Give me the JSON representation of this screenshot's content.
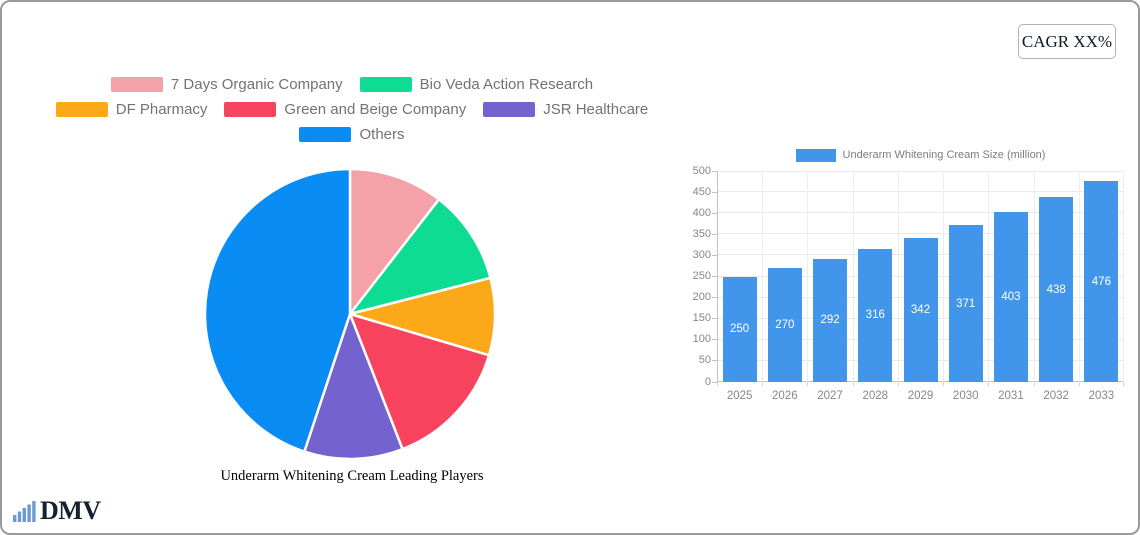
{
  "badge": {
    "label": "CAGR XX%"
  },
  "logo": {
    "text": "DMV",
    "icon": "growth-bars-icon",
    "icon_color": "#6c9ad3",
    "text_color": "#16212e"
  },
  "chart_data": [
    {
      "type": "pie",
      "title": "Underarm Whitening Cream Leading Players",
      "legend_position": "top",
      "legend_rows": [
        [
          0,
          1
        ],
        [
          2,
          3,
          4
        ],
        [
          5
        ]
      ],
      "start_angle": "12-oclock",
      "direction": "clockwise",
      "legend_text_color": "#737373",
      "series": [
        {
          "label": "7 Days Organic Company",
          "value_percent": 10.5,
          "color": "#f4a1a7"
        },
        {
          "label": "Bio Veda Action Research",
          "value_percent": 10.5,
          "color": "#0edc92"
        },
        {
          "label": "DF Pharmacy",
          "value_percent": 8.6,
          "color": "#fba919"
        },
        {
          "label": "Green and Beige Company",
          "value_percent": 14.5,
          "color": "#f8435f"
        },
        {
          "label": "JSR Healthcare",
          "value_percent": 11.0,
          "color": "#7463ce"
        },
        {
          "label": "Others",
          "value_percent": 44.9,
          "color": "#0a8cf5"
        }
      ]
    },
    {
      "type": "bar",
      "legend": "Underarm Whitening Cream Size (million)",
      "legend_position": "top",
      "categories": [
        "2025",
        "2026",
        "2027",
        "2028",
        "2029",
        "2030",
        "2031",
        "2032",
        "2033"
      ],
      "values": [
        250,
        270,
        292,
        316,
        342,
        371,
        403,
        438,
        476
      ],
      "bar_color": "#4196ec",
      "value_label_color": "#ffffff",
      "ylim": [
        0,
        500
      ],
      "ytick_step": 50,
      "grid": true
    }
  ]
}
